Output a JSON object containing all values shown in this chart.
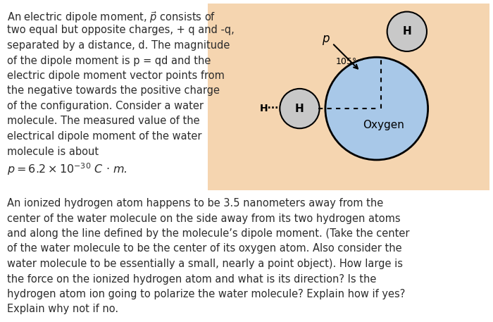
{
  "bg_color": "#FFFFFF",
  "panel_bg": "#F5D5B0",
  "oxygen_color": "#A8C8E8",
  "oxygen_stroke": "#000000",
  "hydrogen_color": "#C8C8C8",
  "hydrogen_stroke": "#000000",
  "text_color": "#2C2C2C",
  "text_lines_top": [
    "An electric dipole moment, $\\vec{p}$ consists of",
    "two equal but opposite charges, + q and -q,",
    "separated by a distance, d. The magnitude",
    "of the dipole moment is p = qd and the",
    "electric dipole moment vector points from",
    "the negative towards the positive charge",
    "of the configuration. Consider a water",
    "molecule. The measured value of the",
    "electrical dipole moment of the water",
    "molecule is about"
  ],
  "formula_line": "$p = 6.2 \\times 10^{-30}$ C $\\cdot$ m.",
  "text_lines_bottom": [
    "An ionized hydrogen atom happens to be 3.5 nanometers away from the",
    "center of the water molecule on the side away from its two hydrogen atoms",
    "and along the line defined by the molecule’s dipole moment. (Take the center",
    "of the water molecule to be the center of its oxygen atom. Also consider the",
    "water molecule to be essentially a small, nearly a point object). How large is",
    "the force on the ionized hydrogen atom and what is its direction? Is the",
    "hydrogen atom ion going to polarize the water molecule? Explain how if yes?",
    "Explain why not if no."
  ],
  "font_size_body": 10.5,
  "font_size_formula": 11.5,
  "font_size_atom": 11,
  "font_size_label": 11,
  "font_size_angle": 9
}
